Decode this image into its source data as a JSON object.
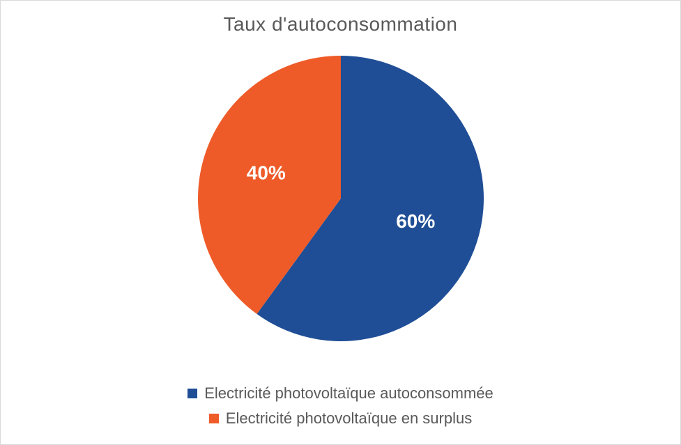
{
  "chart": {
    "type": "pie",
    "title": "Taux d'autoconsommation",
    "title_fontsize": 28,
    "title_color": "#595959",
    "background_color": "#ffffff",
    "border_color": "#d9d9d9",
    "radius": 205,
    "start_angle_deg": 0,
    "slices": [
      {
        "label": "Electricité photovoltaïque autoconsommée",
        "value": 60,
        "display": "60%",
        "color": "#1f4e96"
      },
      {
        "label": "Electricité photovoltaïque en surplus",
        "value": 40,
        "display": "40%",
        "color": "#ee5b29"
      }
    ],
    "data_label_color": "#ffffff",
    "data_label_fontsize": 28,
    "data_label_fontweight": 700,
    "legend_fontsize": 22,
    "legend_color": "#595959",
    "legend_swatch_size": 14
  }
}
